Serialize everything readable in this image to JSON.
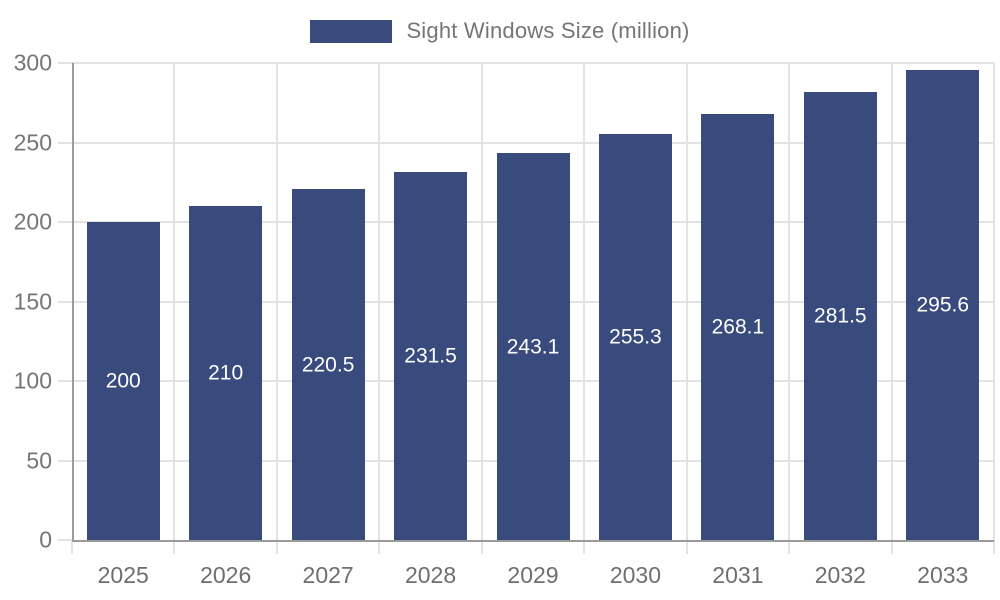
{
  "legend": {
    "label": "Sight Windows Size (million)"
  },
  "colors": {
    "bar": "#394a7c",
    "axis": "#9b9b9b",
    "grid": "#e3e3e3",
    "tick_text": "#757575",
    "x_tick_text": "#6e6e6e",
    "bar_label_text": "#ffffff",
    "background": "#ffffff"
  },
  "chart_data": {
    "type": "bar",
    "title": "Sight Windows Size (million)",
    "categories": [
      "2025",
      "2026",
      "2027",
      "2028",
      "2029",
      "2030",
      "2031",
      "2032",
      "2033"
    ],
    "series": [
      {
        "name": "Sight Windows Size (million)",
        "values": [
          200,
          210,
          220.5,
          231.5,
          243.1,
          255.3,
          268.1,
          281.5,
          295.6
        ],
        "color": "#394a7c"
      }
    ],
    "value_labels": [
      "200",
      "210",
      "220.5",
      "231.5",
      "243.1",
      "255.3",
      "268.1",
      "281.5",
      "295.6"
    ],
    "xlabel": "",
    "ylabel": "",
    "ylim": [
      0,
      300
    ],
    "yticks": [
      0,
      50,
      100,
      150,
      200,
      250,
      300
    ],
    "grid": true,
    "legend_position": "top-center",
    "value_label_position": "inside-middle"
  }
}
